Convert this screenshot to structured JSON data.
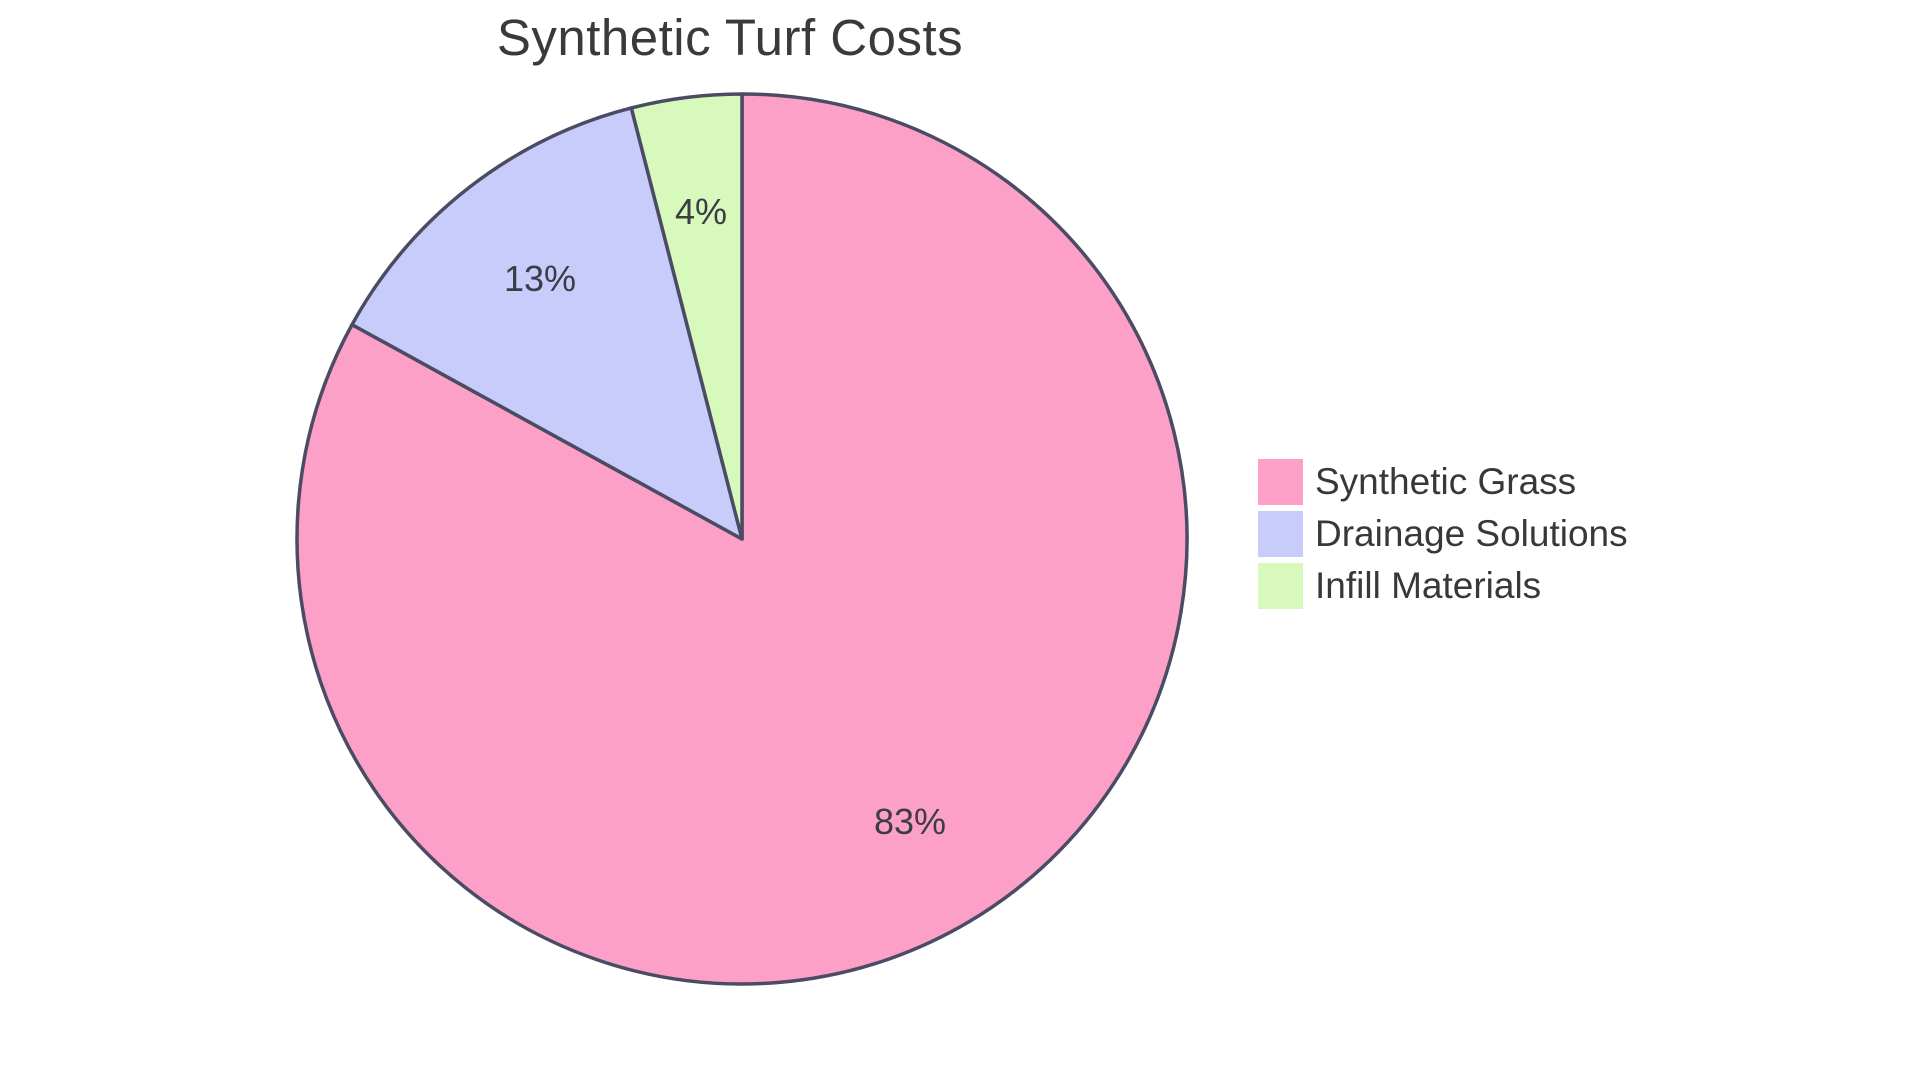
{
  "page": {
    "background_color": "#FFFFFF"
  },
  "chart_data": {
    "type": "pie",
    "title": "Synthetic Turf Costs",
    "categories": [
      "Synthetic Grass",
      "Drainage Solutions",
      "Infill Materials"
    ],
    "values": [
      83,
      13,
      4
    ],
    "slices": [
      {
        "label": "Synthetic Grass",
        "value": 83,
        "percent_label": "83%",
        "color": "#FCA0C8"
      },
      {
        "label": "Drainage Solutions",
        "value": 13,
        "percent_label": "13%",
        "color": "#C8CCFA"
      },
      {
        "label": "Infill Materials",
        "value": 4,
        "percent_label": "4%",
        "color": "#D8F9BC"
      }
    ],
    "outline_color": "#4B4B64",
    "label_color": "#3C3C46",
    "start_angle_deg": 0,
    "direction": "clockwise",
    "legend_position": "right",
    "grid": "off"
  }
}
